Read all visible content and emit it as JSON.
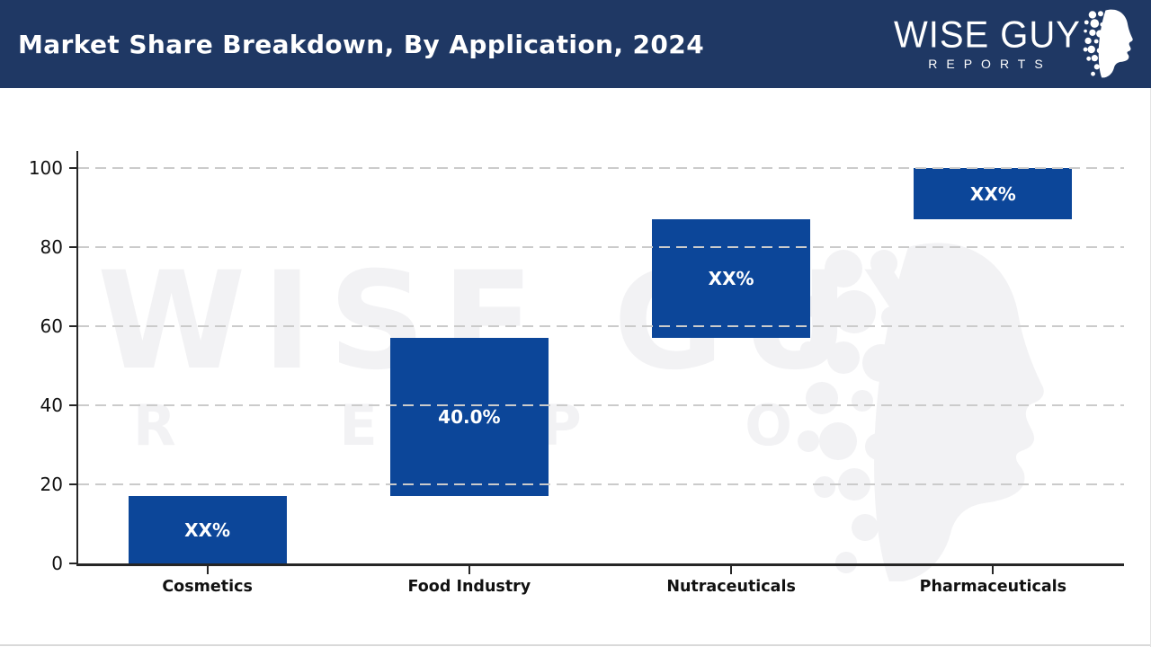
{
  "header": {
    "title": "Market Share Breakdown, By Application, 2024",
    "bg_color": "#1f3864",
    "logo": {
      "line1": "WISE GUY",
      "line2": "REPORTS"
    }
  },
  "watermark": {
    "line1": "WISE GUY",
    "line2": "R E P O R T S"
  },
  "chart_data": {
    "type": "bar",
    "subtype": "waterfall-floating-bars",
    "title": "Market Share Breakdown, By Application, 2024",
    "categories": [
      "Cosmetics",
      "Food Industry",
      "Nutraceuticals",
      "Pharmaceuticals"
    ],
    "series": [
      {
        "name": "Market Share %",
        "segments": [
          {
            "category": "Cosmetics",
            "start": 0,
            "end": 17,
            "label": "XX%"
          },
          {
            "category": "Food Industry",
            "start": 17,
            "end": 57,
            "label": "40.0%"
          },
          {
            "category": "Nutraceuticals",
            "start": 57,
            "end": 87,
            "label": "XX%"
          },
          {
            "category": "Pharmaceuticals",
            "start": 87,
            "end": 100,
            "label": "XX%"
          }
        ]
      }
    ],
    "xlabel": "",
    "ylabel": "",
    "ylim": [
      0,
      100
    ],
    "yticks": [
      0,
      20,
      40,
      60,
      80,
      100
    ],
    "grid": "horizontal-dashed, drawn above bars",
    "legend": "none",
    "bar_color": "#0c4699",
    "bar_label_color": "#ffffff",
    "axis_color": "#262626",
    "gridline_color": "#cbcbcb"
  }
}
